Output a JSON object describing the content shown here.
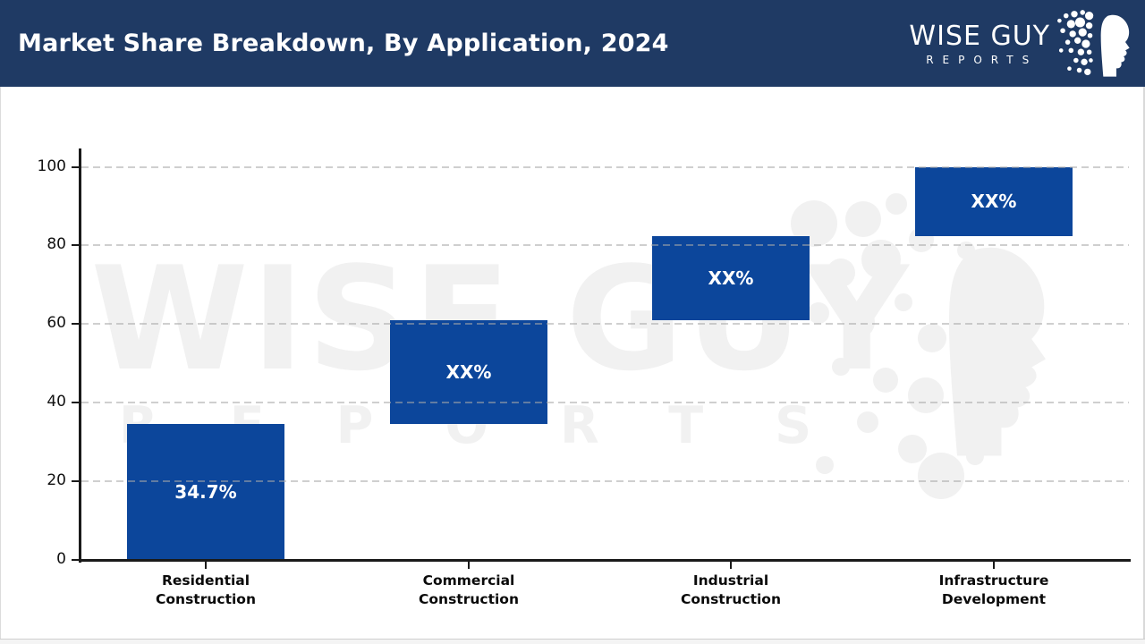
{
  "header": {
    "title": "Market Share Breakdown, By Application, 2024",
    "brand_line1": "WISE GUY",
    "brand_line2": "REPORTS"
  },
  "watermark": {
    "line1": "WISE GUY",
    "line2": "REPORTS"
  },
  "chart_data": {
    "type": "bar",
    "subtype": "waterfall-stacked-range",
    "title": "Market Share Breakdown, By Application, 2024",
    "categories": [
      "Residential Construction",
      "Commercial Construction",
      "Industrial Construction",
      "Infrastructure Development"
    ],
    "category_lines": [
      [
        "Residential",
        "Construction"
      ],
      [
        "Commercial",
        "Construction"
      ],
      [
        "Industrial",
        "Construction"
      ],
      [
        "Infrastructure",
        "Development"
      ]
    ],
    "segments": [
      {
        "start": 0,
        "end": 34.7,
        "label": "34.7%"
      },
      {
        "start": 34.7,
        "end": 61.0,
        "label": "XX%"
      },
      {
        "start": 61.0,
        "end": 82.4,
        "label": "XX%"
      },
      {
        "start": 82.4,
        "end": 100,
        "label": "XX%"
      }
    ],
    "yticks": [
      0,
      20,
      40,
      60,
      80,
      100
    ],
    "ylim": [
      0,
      104.5
    ],
    "xlabel": "",
    "ylabel": "",
    "grid": "horizontal dashed",
    "legend": "none",
    "colors": {
      "bar": "#0c469b",
      "bar_label": "#ffffff",
      "header_bg": "#1f3a64",
      "axis": "#1a1a1a",
      "gridline": "#d6d6d6",
      "watermark": "#f1f1f1"
    }
  }
}
